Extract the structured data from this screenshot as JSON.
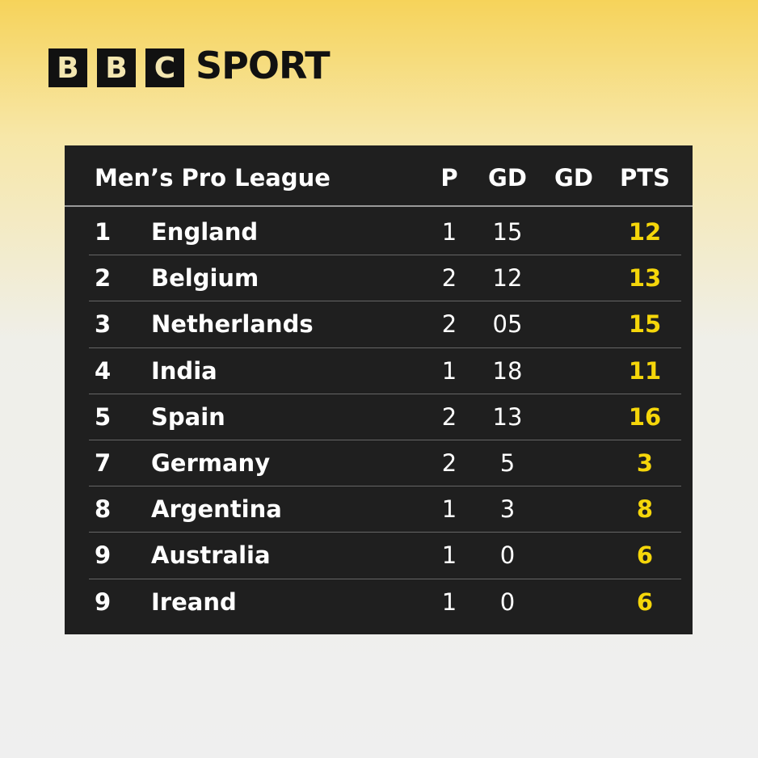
{
  "logo": {
    "letters": [
      "B",
      "B",
      "C"
    ],
    "sport": "SPORT"
  },
  "header": {
    "title": "Men’s Pro League",
    "columns": [
      "P",
      "GD",
      "GD",
      "PTS"
    ]
  },
  "rows": [
    [
      "1",
      "England",
      "1",
      "15",
      "12"
    ],
    [
      "2",
      "Belgium",
      "2",
      "12",
      "13"
    ],
    [
      "3",
      "Netherlands",
      "2",
      "05",
      "15"
    ],
    [
      "4",
      "India",
      "1",
      "18",
      "11"
    ],
    [
      "5",
      "Spain",
      "2",
      "13",
      "16"
    ],
    [
      "7",
      "Germany",
      "2",
      "5",
      "3"
    ],
    [
      "8",
      "Argentina",
      "1",
      "3",
      "8"
    ],
    [
      "9",
      "Australia",
      "1",
      "0",
      "6"
    ],
    [
      "9",
      "Ireand",
      "1",
      "0",
      "6"
    ]
  ]
}
